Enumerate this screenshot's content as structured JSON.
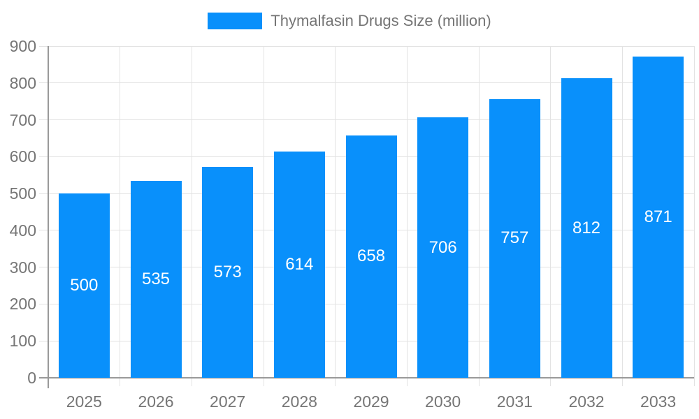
{
  "chart_data": {
    "type": "bar",
    "title": "Thymalfasin Drugs Size (million)",
    "categories": [
      "2025",
      "2026",
      "2027",
      "2028",
      "2029",
      "2030",
      "2031",
      "2032",
      "2033"
    ],
    "series": [
      {
        "name": "Thymalfasin Drugs Size (million)",
        "values": [
          500,
          535,
          573,
          614,
          658,
          706,
          757,
          812,
          871
        ]
      }
    ],
    "xlabel": "",
    "ylabel": "",
    "ylim": [
      0,
      900
    ],
    "ytick_step": 100,
    "grid": "both",
    "legend_position": "top-center",
    "value_labels": "inside-middle",
    "colors": {
      "bar": "#0990fb",
      "value_label": "#ffffff",
      "axis_label": "#757575",
      "legend_label": "#757575",
      "gridline": "#e3e3e3",
      "axis_line": "#999999",
      "background": "#ffffff"
    }
  }
}
